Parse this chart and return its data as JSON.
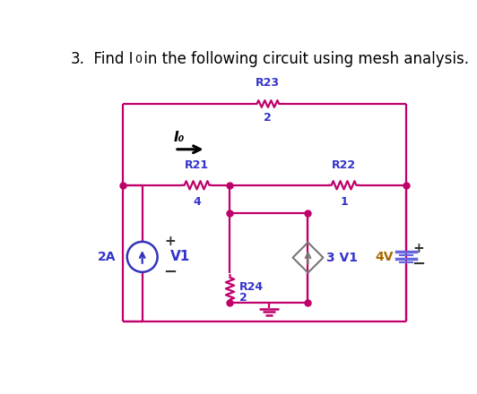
{
  "wire_color": "#C0006A",
  "comp_color": "#3333CC",
  "label_color": "#000000",
  "bg_color": "#FFFFFF",
  "figsize": [
    5.32,
    4.4
  ],
  "dpi": 100,
  "title_num": "3.",
  "title_text": "  Find I",
  "title_sub": "0",
  "title_rest": " in the following circuit using mesh analysis.",
  "resistors": {
    "R23": {
      "label": "R23",
      "val": "2"
    },
    "R21": {
      "label": "R21",
      "val": "4"
    },
    "R22": {
      "label": "R22",
      "val": "1"
    },
    "R24": {
      "label": "R24",
      "val": "2"
    }
  },
  "sources": {
    "cs": {
      "label": "2A"
    },
    "vs": {
      "label": "V1"
    },
    "dep": {
      "label": "3 V1"
    },
    "bat": {
      "label": "4V"
    }
  }
}
